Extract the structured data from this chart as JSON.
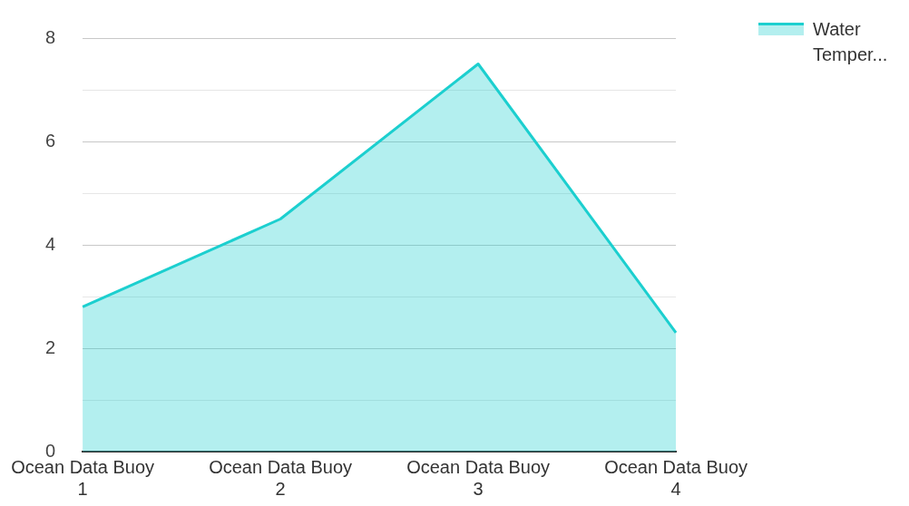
{
  "chart_data": {
    "type": "area",
    "categories": [
      "Ocean Data Buoy 1",
      "Ocean Data Buoy 2",
      "Ocean Data Buoy 3",
      "Ocean Data Buoy 4"
    ],
    "series": [
      {
        "name": "Water Temper...",
        "color": "#1ccfcf",
        "values": [
          2.8,
          4.5,
          7.5,
          2.3
        ]
      }
    ],
    "ylim": [
      0,
      8
    ],
    "yticks": [
      0,
      {
        "value": 1,
        "label": null
      },
      2,
      {
        "value": 3,
        "label": null
      },
      4,
      {
        "value": 5,
        "label": null
      },
      6,
      {
        "value": 7,
        "label": null
      },
      8
    ],
    "grid": "y",
    "legend": "top right"
  }
}
